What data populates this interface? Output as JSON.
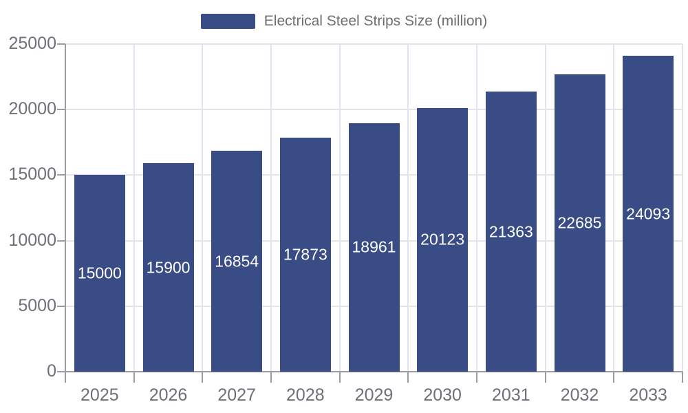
{
  "chart_data": {
    "type": "bar",
    "title": "",
    "legend_position": "top",
    "categories": [
      "2025",
      "2026",
      "2027",
      "2028",
      "2029",
      "2030",
      "2031",
      "2032",
      "2033"
    ],
    "series": [
      {
        "name": "Electrical Steel Strips Size (million)",
        "values": [
          15000,
          15900,
          16854,
          17873,
          18961,
          20123,
          21363,
          22685,
          24093
        ]
      }
    ],
    "value_labels_visible": true,
    "value_label_position": "inside-center",
    "xlabel": "",
    "ylabel": "",
    "ylim": [
      0,
      25000
    ],
    "yticks": [
      0,
      5000,
      10000,
      15000,
      20000,
      25000
    ],
    "grid": true,
    "colors": {
      "bar": "#394C86",
      "bar_value_label": "#FFFFFF",
      "axis_label": "#6E7079",
      "legend_text": "#6F6F6F",
      "axis_line": "#9A9DA4",
      "gridline_h": "#E4E4E8",
      "gridline_v": "#E2E3EE"
    }
  }
}
